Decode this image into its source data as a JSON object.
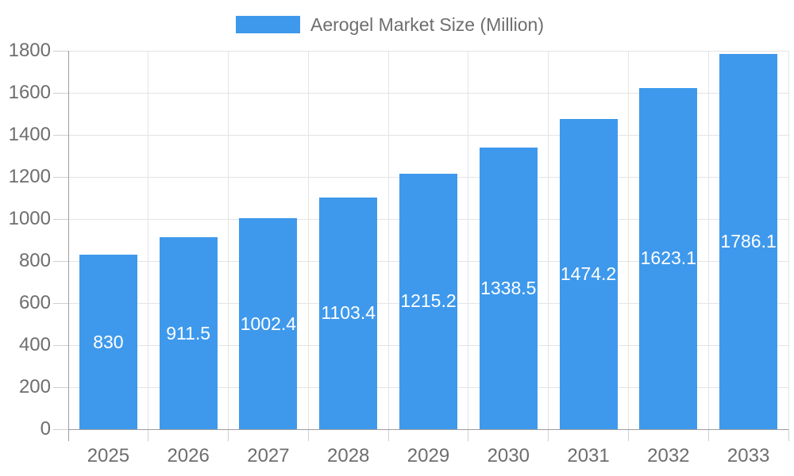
{
  "legend": {
    "label": "Aerogel Market Size (Million)"
  },
  "chart_data": {
    "type": "bar",
    "title": "Aerogel Market Size (Million)",
    "categories": [
      "2025",
      "2026",
      "2027",
      "2028",
      "2029",
      "2030",
      "2031",
      "2032",
      "2033"
    ],
    "values": [
      830,
      911.5,
      1002.4,
      1103.4,
      1215.2,
      1338.5,
      1474.2,
      1623.1,
      1786.1
    ],
    "value_labels": [
      "830",
      "911.5",
      "1002.4",
      "1103.4",
      "1215.2",
      "1338.5",
      "1474.2",
      "1623.1",
      "1786.1"
    ],
    "xlabel": "",
    "ylabel": "",
    "ylim": [
      0,
      1800
    ],
    "yticks": [
      0,
      200,
      400,
      600,
      800,
      1000,
      1200,
      1400,
      1600,
      1800
    ],
    "grid": true,
    "legend_position": "top-center",
    "colors": {
      "bar": "#3E99EC",
      "value_label": "#FFFFFF",
      "axis_text": "#6E6E6E",
      "grid": "#E4E4E4",
      "tick": "#CFCFCF",
      "axis_line": "#9E9E9E",
      "background": "#FFFFFF"
    }
  }
}
